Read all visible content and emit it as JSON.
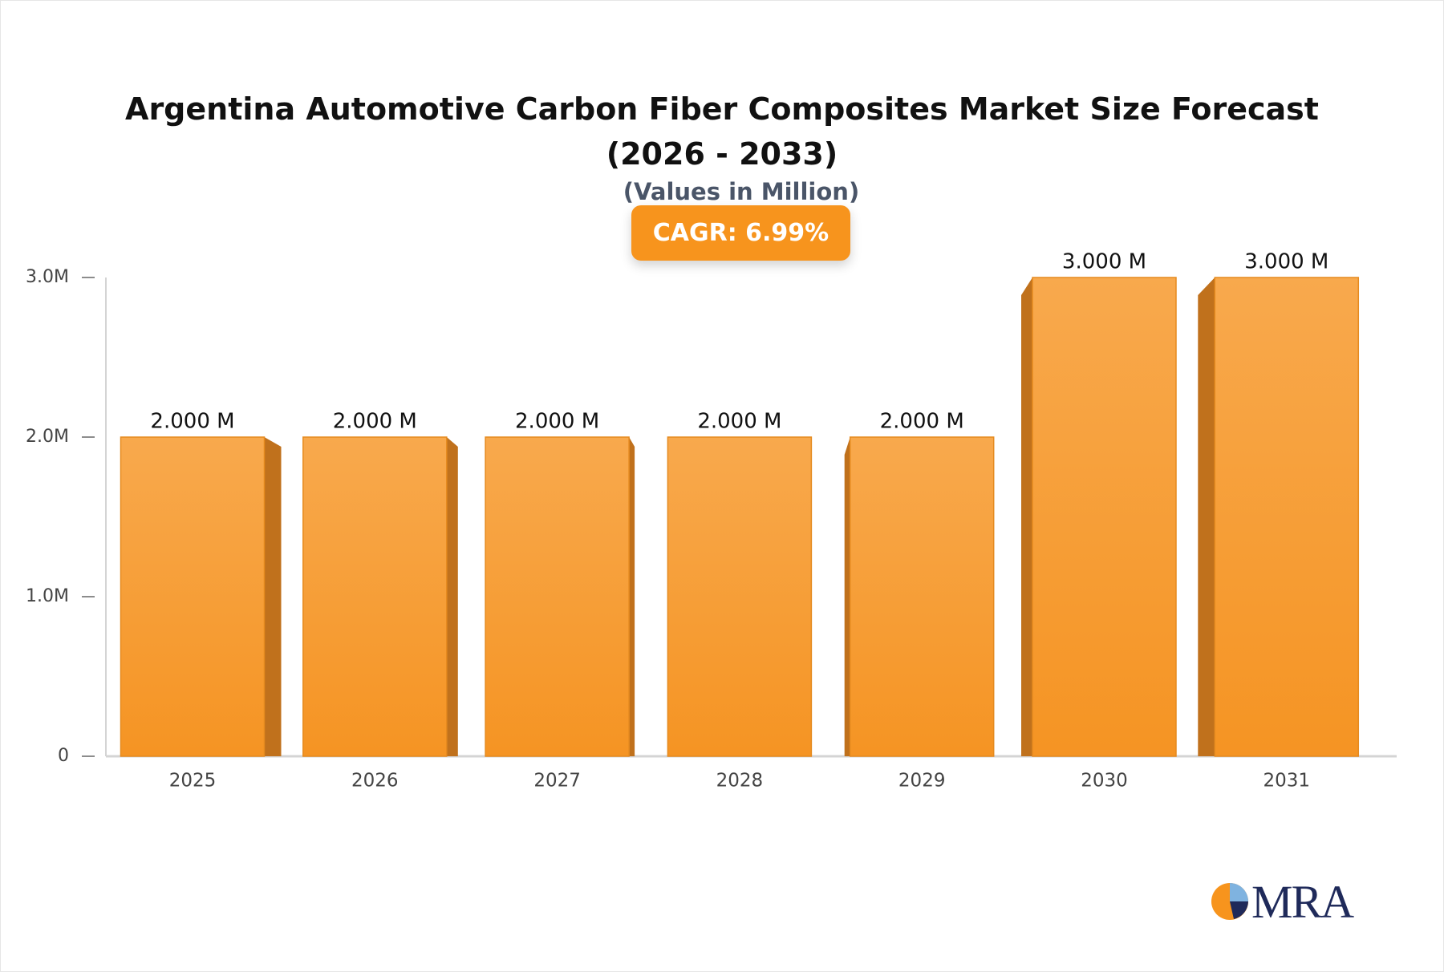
{
  "chart_data": {
    "type": "bar",
    "title": "Argentina Automotive Carbon Fiber Composites Market Size Forecast (2026 - 2033)",
    "subtitle": "(Values in Million)",
    "annotation": "CAGR: 6.99%",
    "categories": [
      "2025",
      "2026",
      "2027",
      "2028",
      "2029",
      "2030",
      "2031"
    ],
    "values": [
      2,
      2,
      2,
      2,
      2,
      3,
      3
    ],
    "value_labels": [
      "2.000 M",
      "2.000 M",
      "2.000 M",
      "2.000 M",
      "2.000 M",
      "3.000 M",
      "3.000 M"
    ],
    "color": "#f7941d",
    "ylim": [
      0,
      3
    ],
    "yticks": [
      0,
      {
        "value": 1,
        "label": "1.0M"
      },
      {
        "value": 2,
        "label": "2.0M"
      },
      {
        "value": 3,
        "label": "3.0M"
      }
    ],
    "grid": false
  },
  "logo": "MRA"
}
